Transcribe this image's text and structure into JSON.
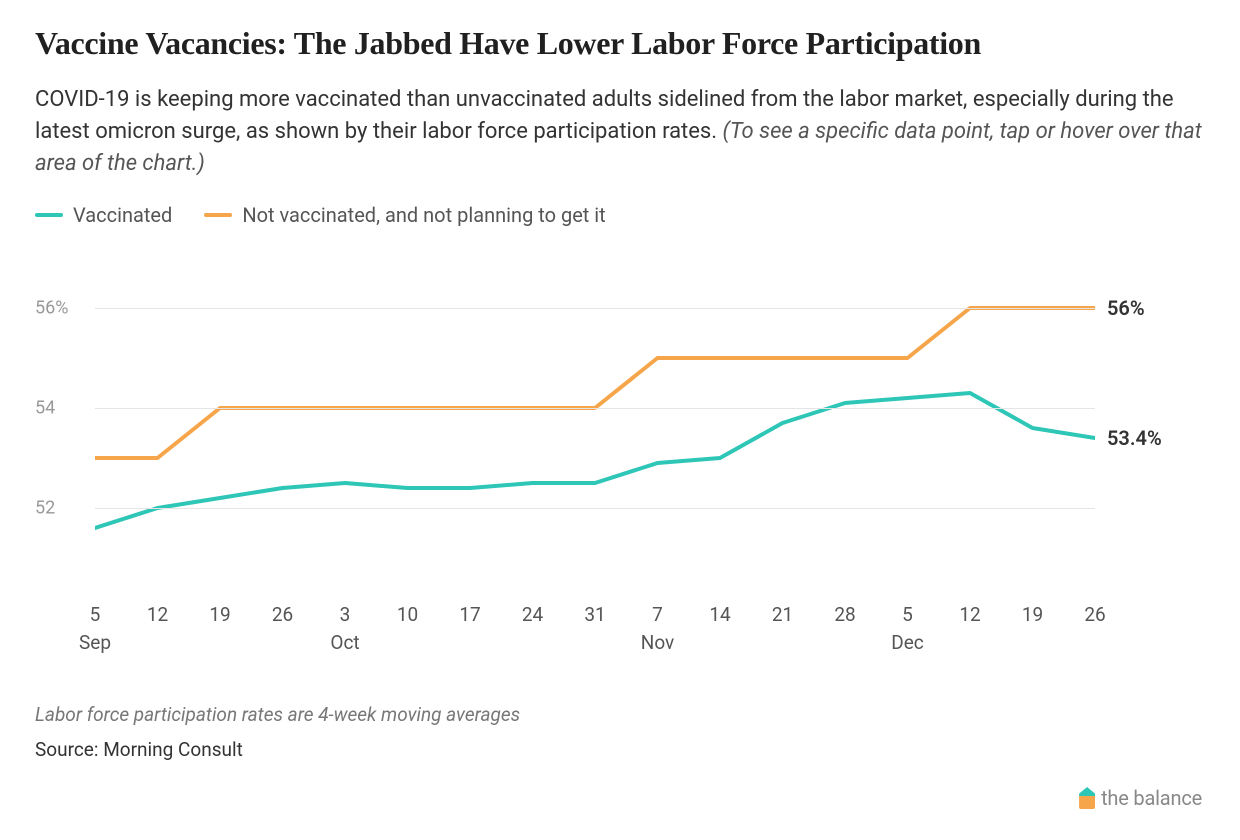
{
  "title": "Vaccine Vacancies: The Jabbed Have Lower Labor Force Participation",
  "title_fontsize": 32,
  "subtitle_main": "COVID-19 is keeping more vaccinated than unvaccinated adults sidelined from the labor market, especially during the latest omicron surge, as shown by their labor force participation rates. ",
  "subtitle_hint": "(To see a specific data point, tap or hover over that area of the chart.)",
  "subtitle_fontsize": 22,
  "legend": [
    {
      "label": "Vaccinated",
      "color": "#2ec6b6"
    },
    {
      "label": "Not vaccinated, and not planning to get it",
      "color": "#f6a54a"
    }
  ],
  "legend_fontsize": 20,
  "chart": {
    "type": "line",
    "x_labels": [
      "5",
      "12",
      "19",
      "26",
      "3",
      "10",
      "17",
      "24",
      "31",
      "7",
      "14",
      "21",
      "28",
      "5",
      "12",
      "19",
      "26"
    ],
    "x_months": [
      {
        "label": "Sep",
        "at_index": 0
      },
      {
        "label": "Oct",
        "at_index": 4
      },
      {
        "label": "Nov",
        "at_index": 9
      },
      {
        "label": "Dec",
        "at_index": 13
      }
    ],
    "y_ticks": [
      52,
      54,
      56
    ],
    "y_label_suffix_first": "%",
    "ylim": [
      50.5,
      56.5
    ],
    "grid_color": "#e5e5e5",
    "line_width": 4,
    "series": [
      {
        "name": "Not vaccinated",
        "color": "#f6a54a",
        "values": [
          53,
          53,
          54,
          54,
          54,
          54,
          54,
          54,
          54,
          55,
          55,
          55,
          55,
          55,
          56,
          56,
          56
        ],
        "end_label": "56%"
      },
      {
        "name": "Vaccinated",
        "color": "#2ec6b6",
        "values": [
          51.6,
          52.0,
          52.2,
          52.4,
          52.5,
          52.4,
          52.4,
          52.5,
          52.5,
          52.9,
          53.0,
          53.7,
          54.1,
          54.2,
          54.3,
          53.6,
          53.4
        ],
        "end_label": "53.4%"
      }
    ]
  },
  "footnote": "Labor force participation rates are 4-week moving averages",
  "source": "Source: Morning Consult",
  "footer_fontsize": 19,
  "brand": "the balance"
}
